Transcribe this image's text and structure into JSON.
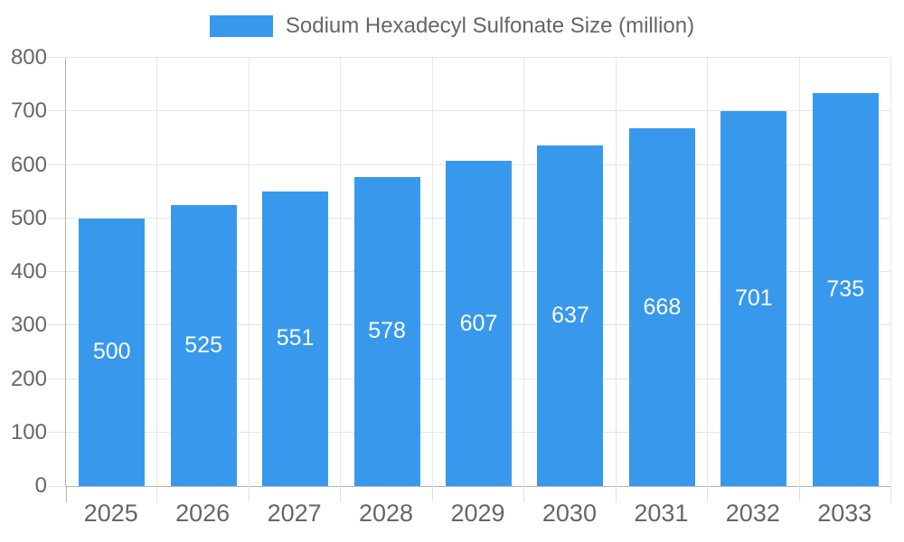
{
  "legend": {
    "label": "Sodium Hexadecyl Sulfonate Size (million)"
  },
  "colors": {
    "bar": "#3899EC",
    "tick_text": "#666666",
    "value_label_text": "#FFFFFF",
    "grid": "#E6E6E6",
    "axis_line": "#B3B3B3",
    "background": "#FFFFFF"
  },
  "chart_data": {
    "type": "bar",
    "title": "Sodium Hexadecyl Sulfonate Size (million)",
    "categories": [
      "2025",
      "2026",
      "2027",
      "2028",
      "2029",
      "2030",
      "2031",
      "2032",
      "2033"
    ],
    "values": [
      500,
      525,
      551,
      578,
      607,
      637,
      668,
      701,
      735
    ],
    "series": [
      {
        "name": "Sodium Hexadecyl Sulfonate Size (million)",
        "values": [
          500,
          525,
          551,
          578,
          607,
          637,
          668,
          701,
          735
        ]
      }
    ],
    "xlabel": "",
    "ylabel": "",
    "ylim": [
      0,
      800
    ],
    "yticks": [
      0,
      100,
      200,
      300,
      400,
      500,
      600,
      700,
      800
    ],
    "grid": true,
    "legend_position": "top",
    "value_labels_position": "inside-center"
  }
}
